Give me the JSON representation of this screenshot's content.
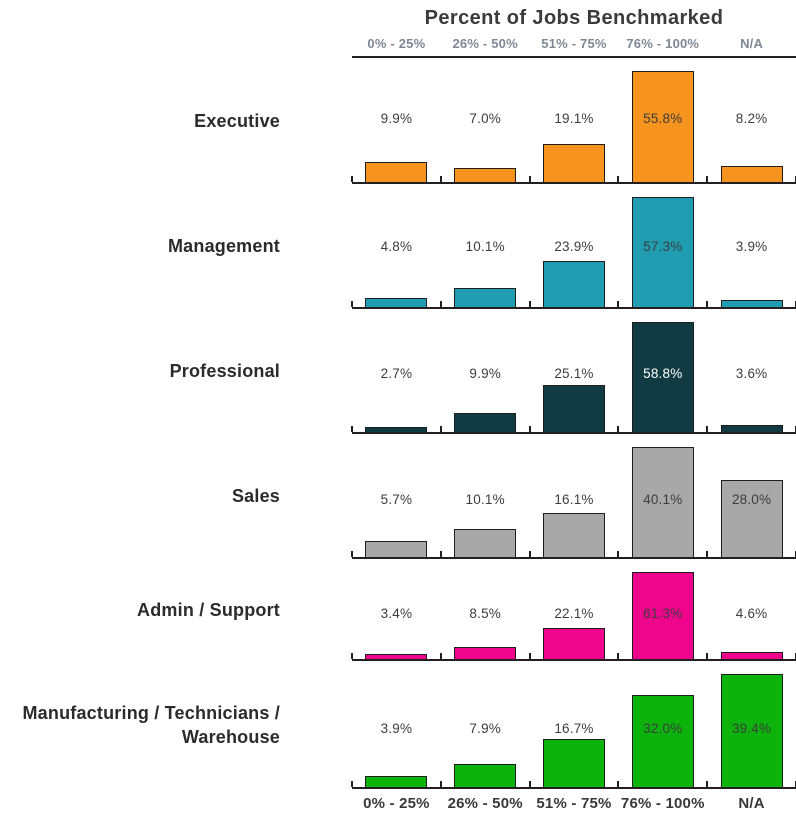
{
  "chart_data": {
    "type": "bar",
    "title": "Percent of Jobs Benchmarked",
    "categories": [
      "0% - 25%",
      "26% - 50%",
      "51% - 75%",
      "76% - 100%",
      "N/A"
    ],
    "value_format": "one_decimal_percent",
    "normalization": "bars_scaled_to_row_max",
    "legend_position": "none",
    "axis": {
      "top_category_header": true,
      "bottom_category_header": true,
      "gridlines": false
    },
    "series": [
      {
        "name": "Executive",
        "color": "#F7941E",
        "values": [
          9.9,
          7.0,
          19.1,
          55.8,
          8.2
        ]
      },
      {
        "name": "Management",
        "color": "#219DB2",
        "values": [
          4.8,
          10.1,
          23.9,
          57.3,
          3.9
        ]
      },
      {
        "name": "Professional",
        "color": "#113B43",
        "values": [
          2.7,
          9.9,
          25.1,
          58.8,
          3.6
        ],
        "value_label_colors": [
          "#3d3d3d",
          "#3d3d3d",
          "#3d3d3d",
          "#FFFFFF",
          "#3d3d3d"
        ]
      },
      {
        "name": "Sales",
        "color": "#A8A8A8",
        "values": [
          5.7,
          10.1,
          16.1,
          40.1,
          28.0
        ]
      },
      {
        "name": "Admin / Support",
        "color": "#EE058C",
        "values": [
          3.4,
          8.5,
          22.1,
          61.3,
          4.6
        ]
      },
      {
        "name": "Manufacturing / Technicians / Warehouse",
        "color": "#0BB30B",
        "values": [
          3.9,
          7.9,
          16.7,
          32.0,
          39.4
        ]
      }
    ]
  }
}
